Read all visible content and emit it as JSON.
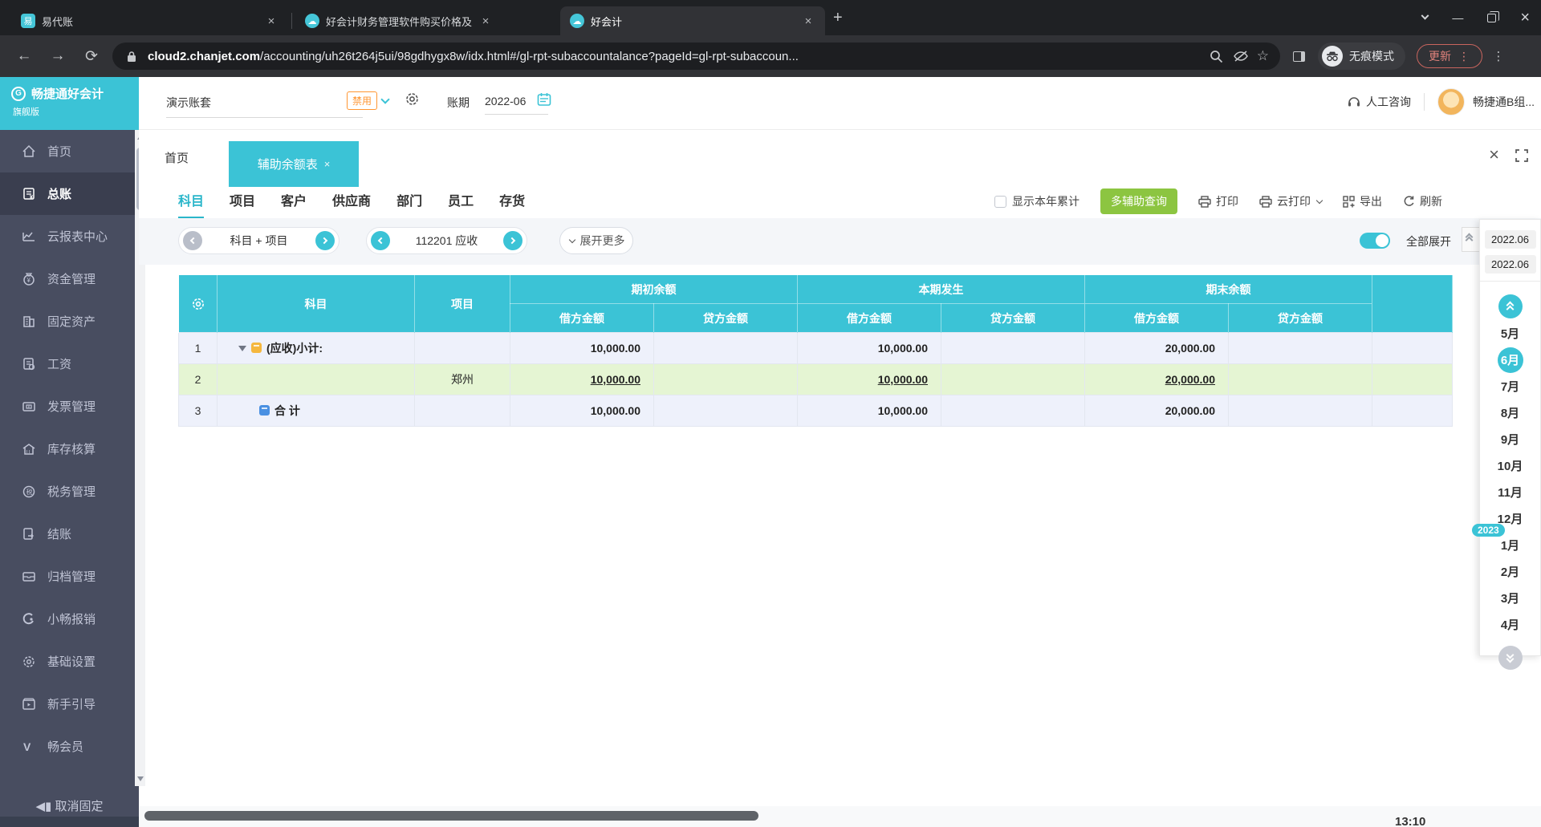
{
  "colors": {
    "accent": "#3bc3d6",
    "green": "#8cc541",
    "orange": "#ff9632",
    "red": "#e2837c",
    "sidebar": "#484d60"
  },
  "browser": {
    "tabs": [
      {
        "title": "易代账",
        "active": false
      },
      {
        "title": "好会计财务管理软件购买价格及",
        "active": false
      },
      {
        "title": "好会计",
        "active": true
      }
    ],
    "url_host": "cloud2.chanjet.com",
    "url_path": "/accounting/uh26t264j5ui/98gdhygx8w/idx.html#/gl-rpt-subaccountalance?pageId=gl-rpt-subaccoun...",
    "incognito_label": "无痕模式",
    "update_label": "更新"
  },
  "app_header": {
    "account_set": "演示账套",
    "disabled_badge": "禁用",
    "period_label": "账期",
    "period_value": "2022-06",
    "support_label": "人工咨询",
    "user_label": "畅捷通B组..."
  },
  "sidebar": {
    "logo_title": "畅捷通好会计",
    "logo_badge": "旗舰版",
    "items": [
      {
        "key": "home",
        "label": "首页",
        "active": false
      },
      {
        "key": "general-ledger",
        "label": "总账",
        "active": true
      },
      {
        "key": "cloud-report",
        "label": "云报表中心",
        "active": false
      },
      {
        "key": "funds",
        "label": "资金管理",
        "active": false
      },
      {
        "key": "fixed-assets",
        "label": "固定资产",
        "active": false
      },
      {
        "key": "salary",
        "label": "工资",
        "active": false
      },
      {
        "key": "invoice",
        "label": "发票管理",
        "active": false
      },
      {
        "key": "inventory",
        "label": "库存核算",
        "active": false
      },
      {
        "key": "tax",
        "label": "税务管理",
        "active": false
      },
      {
        "key": "closing",
        "label": "结账",
        "active": false
      },
      {
        "key": "archive",
        "label": "归档管理",
        "active": false
      },
      {
        "key": "reimburse",
        "label": "小畅报销",
        "active": false
      },
      {
        "key": "settings",
        "label": "基础设置",
        "active": false
      },
      {
        "key": "guide",
        "label": "新手引导",
        "active": false
      },
      {
        "key": "member",
        "label": "畅会员",
        "active": false
      }
    ],
    "unpin_label": "取消固定"
  },
  "workspace": {
    "home_tab": "首页",
    "report_tab": "辅助余额表"
  },
  "toolbar": {
    "view_tabs": [
      {
        "label": "科目",
        "active": true
      },
      {
        "label": "项目",
        "active": false
      },
      {
        "label": "客户",
        "active": false
      },
      {
        "label": "供应商",
        "active": false
      },
      {
        "label": "部门",
        "active": false
      },
      {
        "label": "员工",
        "active": false
      },
      {
        "label": "存货",
        "active": false
      }
    ],
    "checkbox_label": "显示本年累计",
    "multi_query_label": "多辅助查询",
    "print_label": "打印",
    "cloud_print_label": "云打印",
    "export_label": "导出",
    "refresh_label": "刷新"
  },
  "filters": {
    "pill_subject_project": "科目 + 项目",
    "pill_account": "112201 应收",
    "expand_more_label": "展开更多",
    "expand_all_label": "全部展开"
  },
  "table": {
    "subject_header": "科目",
    "project_header": "项目",
    "group_headers": [
      "期初余额",
      "本期发生",
      "期末余额"
    ],
    "debit_header": "借方金额",
    "credit_header": "贷方金额",
    "rows": [
      {
        "no": "1",
        "subject": "(应收)小计:",
        "project": "",
        "variant": "subtotal",
        "values": [
          "10,000.00",
          "",
          "10,000.00",
          "",
          "20,000.00",
          ""
        ],
        "link": false
      },
      {
        "no": "2",
        "subject": "",
        "project": "郑州",
        "variant": "detail",
        "values": [
          "10,000.00",
          "",
          "10,000.00",
          "",
          "20,000.00",
          ""
        ],
        "link": true
      },
      {
        "no": "3",
        "subject": "合 计",
        "project": "",
        "variant": "total",
        "values": [
          "10,000.00",
          "",
          "10,000.00",
          "",
          "20,000.00",
          ""
        ],
        "link": false
      }
    ]
  },
  "month_panel": {
    "period_box_1": "2022.06",
    "period_box_2": "2022.06",
    "months": [
      {
        "label": "5月",
        "active": false
      },
      {
        "label": "6月",
        "active": true
      },
      {
        "label": "7月",
        "active": false
      },
      {
        "label": "8月",
        "active": false
      },
      {
        "label": "9月",
        "active": false
      },
      {
        "label": "10月",
        "active": false
      },
      {
        "label": "11月",
        "active": false
      },
      {
        "label": "12月",
        "active": false
      },
      {
        "label": "1月",
        "active": false,
        "year_badge": "2023"
      },
      {
        "label": "2月",
        "active": false
      },
      {
        "label": "3月",
        "active": false
      },
      {
        "label": "4月",
        "active": false
      }
    ]
  },
  "statusbar": {
    "clock": "13:10"
  }
}
